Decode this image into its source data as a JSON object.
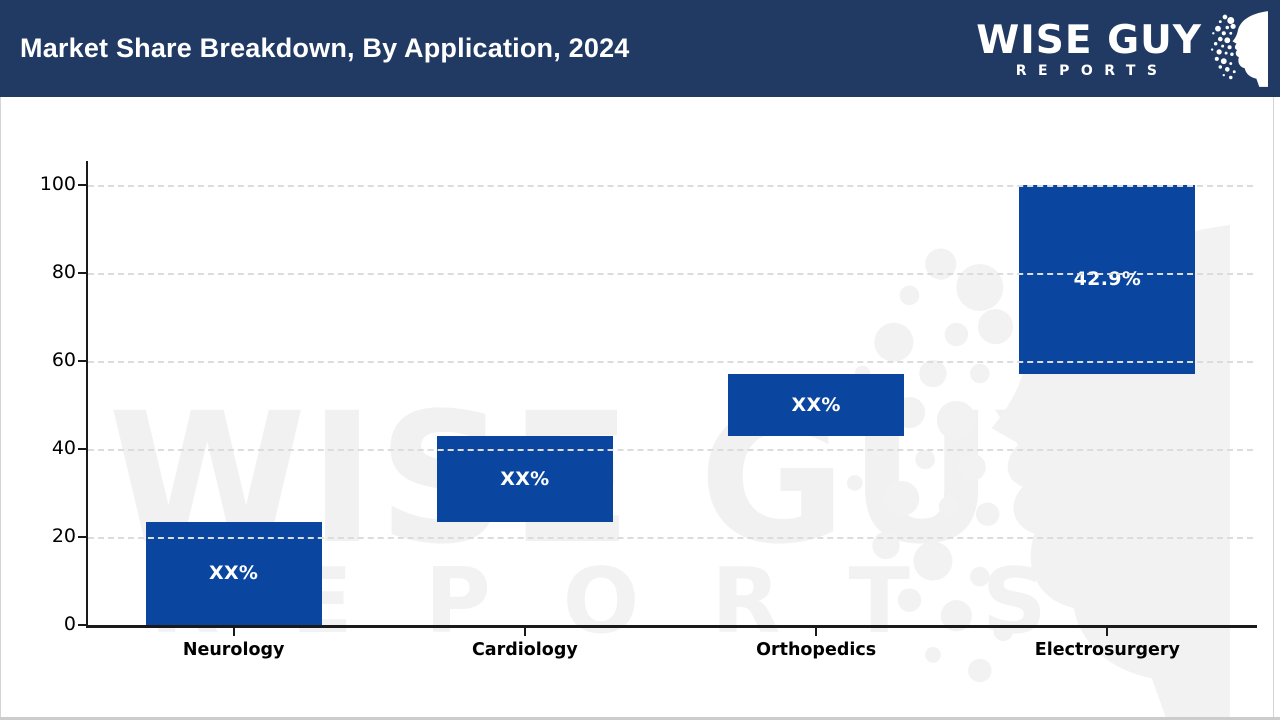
{
  "header": {
    "title": "Market Share Breakdown, By Application, 2024",
    "logo": {
      "primary": "WISE GUY",
      "secondary": "REPORTS"
    }
  },
  "watermark": {
    "line1": "WISE GUY",
    "line2": "REPORTS"
  },
  "chart_data": {
    "type": "bar",
    "subtype": "waterfall",
    "title": "Market Share Breakdown, By Application, 2024",
    "categories": [
      "Neurology",
      "Cardiology",
      "Orthopedics",
      "Electrosurgery"
    ],
    "bars": [
      {
        "category": "Neurology",
        "start": 0,
        "end": 23.5,
        "label": "XX%"
      },
      {
        "category": "Cardiology",
        "start": 23.5,
        "end": 42.9,
        "label": "XX%"
      },
      {
        "category": "Orthopedics",
        "start": 42.9,
        "end": 57.1,
        "label": "XX%"
      },
      {
        "category": "Electrosurgery",
        "start": 57.1,
        "end": 100,
        "label": "42.9%"
      }
    ],
    "xlabel": "",
    "ylabel": "",
    "ylim": [
      0,
      100
    ],
    "yticks": [
      0,
      20,
      40,
      60,
      80,
      100
    ],
    "grid": "horizontal-dashed",
    "legend": "none",
    "bar_color": "#0a46a0"
  },
  "colors": {
    "header_bg": "#203a64",
    "bar": "#0a46a0",
    "grid": "#dcdcdc",
    "axis": "#1a1a1a",
    "bar_label": "#ffffff",
    "watermark": "#f1f1f1",
    "border": "#cccccc"
  }
}
